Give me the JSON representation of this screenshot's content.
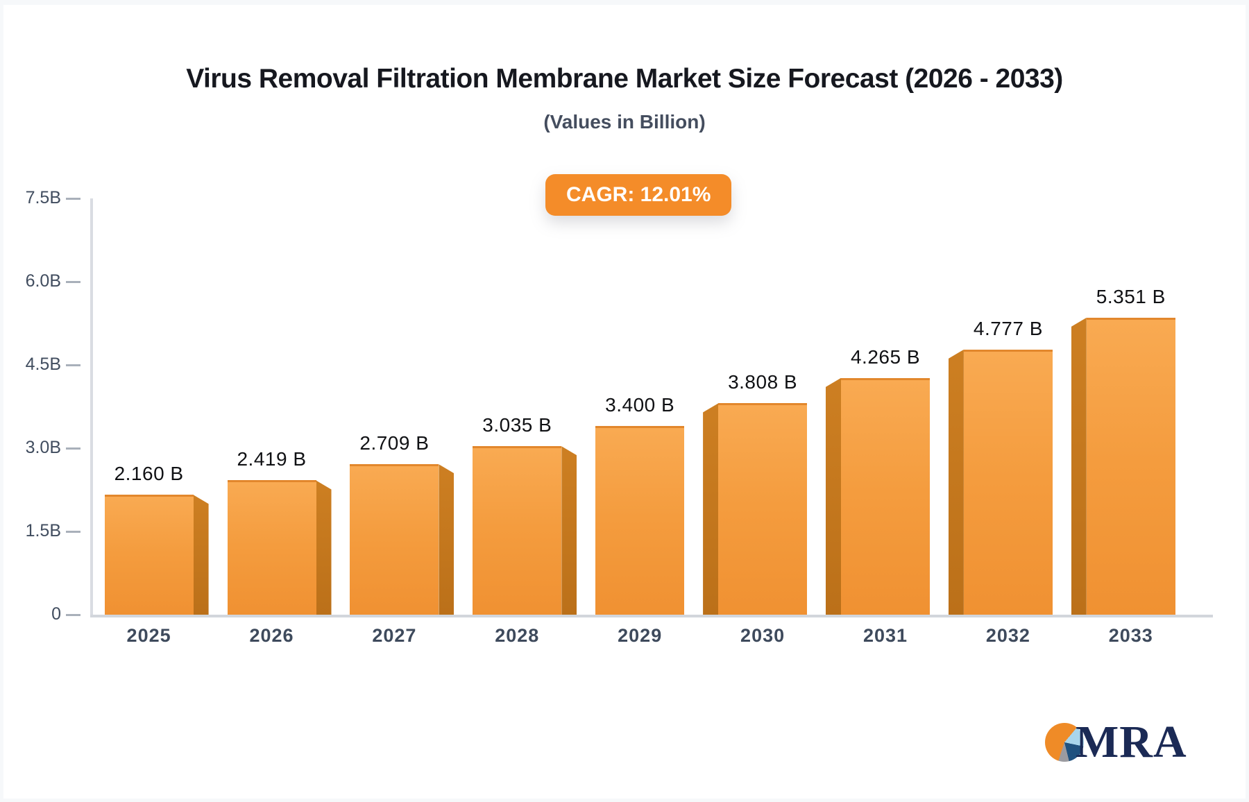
{
  "title": "Virus Removal Filtration Membrane Market Size Forecast (2026 - 2033)",
  "subtitle": "(Values in Billion)",
  "badge": {
    "label": "CAGR: 12.01%"
  },
  "chart_data": {
    "type": "bar",
    "title": "Virus Removal Filtration Membrane Market Size Forecast (2026 - 2033)",
    "subtitle": "(Values in Billion)",
    "categories": [
      "2025",
      "2026",
      "2027",
      "2028",
      "2029",
      "2030",
      "2031",
      "2032",
      "2033"
    ],
    "values": [
      2.16,
      2.419,
      2.709,
      3.035,
      3.4,
      3.808,
      4.265,
      4.777,
      5.351
    ],
    "bar_labels": [
      "2.160 B",
      "2.419 B",
      "2.709 B",
      "3.035 B",
      "3.400 B",
      "3.808 B",
      "4.265 B",
      "4.777 B",
      "5.351 B"
    ],
    "unit": "Billion",
    "ylim": [
      0,
      7.5
    ],
    "y_tick_values": [
      7.5,
      6.0,
      4.5,
      3.0,
      1.5,
      0
    ],
    "y_tick_labels": [
      "7.5B",
      "6.0B",
      "4.5B",
      "3.0B",
      "1.5B",
      "0"
    ],
    "grid": "off",
    "legend": "none",
    "style": "3d-perspective-bars",
    "colors": {
      "bar_face_top": "#f9aa52",
      "bar_face_bottom": "#f09132",
      "bar_top_edge": "#e2872c",
      "bar_side_panel": "#c47a1e",
      "axis_line": "#d9dce2",
      "axis_text": "#3e4a5c",
      "value_label_text": "#101114"
    }
  },
  "logo": {
    "text": "MRA",
    "colors": {
      "orange": "#ef8b27",
      "light_blue": "#a9d6ec",
      "navy": "#20527f",
      "gray": "#9b9ba0",
      "text_navy": "#1b2a55"
    }
  }
}
